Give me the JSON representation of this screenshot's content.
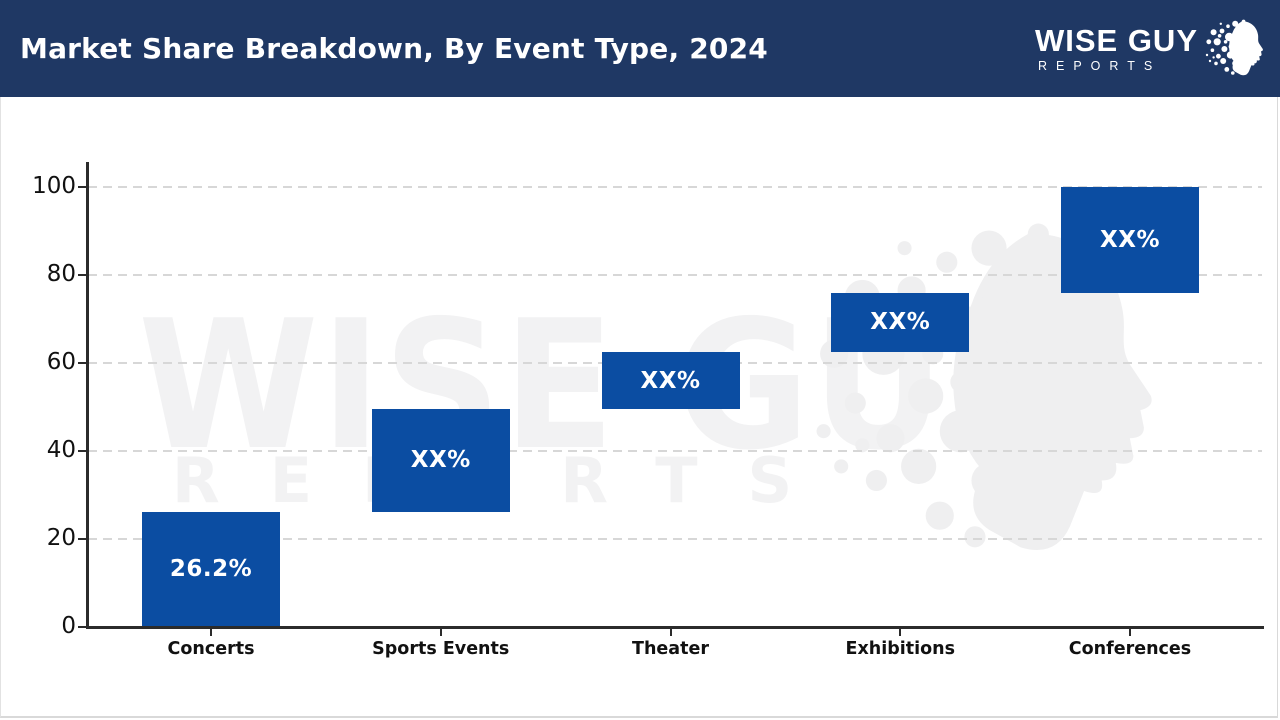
{
  "header": {
    "title": "Market Share Breakdown, By Event Type, 2024",
    "bg_color": "#1f3864",
    "logo": {
      "primary": "WISE GUY",
      "secondary": "REPORTS"
    }
  },
  "watermark": {
    "primary": "WISE GUY",
    "secondary": "REPORTS"
  },
  "chart_data": {
    "type": "bar",
    "subtype": "waterfall",
    "title": "Market Share Breakdown, By Event Type, 2024",
    "categories": [
      "Concerts",
      "Sports Events",
      "Theater",
      "Exhibitions",
      "Conferences"
    ],
    "bars": [
      {
        "category": "Concerts",
        "start": 0,
        "end": 26.2,
        "value": 26.2,
        "label": "26.2%"
      },
      {
        "category": "Sports Events",
        "start": 26.2,
        "end": 49.5,
        "value": 23.3,
        "label": "XX%"
      },
      {
        "category": "Theater",
        "start": 49.5,
        "end": 62.5,
        "value": 13.0,
        "label": "XX%"
      },
      {
        "category": "Exhibitions",
        "start": 62.5,
        "end": 76.0,
        "value": 13.5,
        "label": "XX%"
      },
      {
        "category": "Conferences",
        "start": 76.0,
        "end": 100.0,
        "value": 24.0,
        "label": "XX%"
      }
    ],
    "yticks": [
      0,
      20,
      40,
      60,
      80,
      100
    ],
    "ylim": [
      0,
      105.5
    ],
    "xlabel": "",
    "ylabel": "",
    "grid": "horizontal-dashed",
    "legend": "none",
    "bar_color": "#0b4da2",
    "bar_label_color": "#ffffff"
  }
}
